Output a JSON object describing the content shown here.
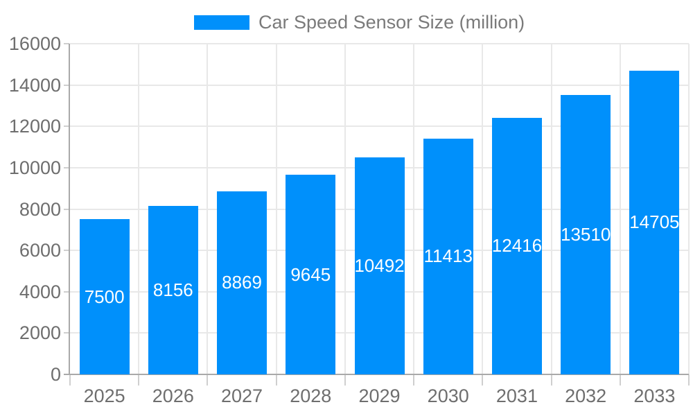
{
  "chart_data": {
    "type": "bar",
    "title": "Car Speed Sensor Size (million)",
    "legend": {
      "position": "top",
      "entries": [
        "Car Speed Sensor Size (million)"
      ]
    },
    "categories": [
      "2025",
      "2026",
      "2027",
      "2028",
      "2029",
      "2030",
      "2031",
      "2032",
      "2033"
    ],
    "series": [
      {
        "name": "Car Speed Sensor Size (million)",
        "values": [
          7500,
          8156,
          8869,
          9645,
          10492,
          11413,
          12416,
          13510,
          14705
        ]
      }
    ],
    "bar_labels": [
      "7500",
      "8156",
      "8869",
      "9645",
      "10492",
      "11413",
      "12416",
      "13510",
      "14705"
    ],
    "xlabel": "",
    "ylabel": "",
    "ylim": [
      0,
      16000
    ],
    "ytick_step": 2000,
    "yticks": [
      "0",
      "2000",
      "4000",
      "6000",
      "8000",
      "10000",
      "12000",
      "14000",
      "16000"
    ],
    "grid": true,
    "colors": {
      "bar": "#0090FB",
      "value_label": "#FFFFFF",
      "axis_line": "#A9A9A9",
      "gridline": "#E8E8E8",
      "tick": "#CFCFCF",
      "axis_text": "#6E6E6E",
      "legend_text": "#7A7A7A"
    }
  }
}
